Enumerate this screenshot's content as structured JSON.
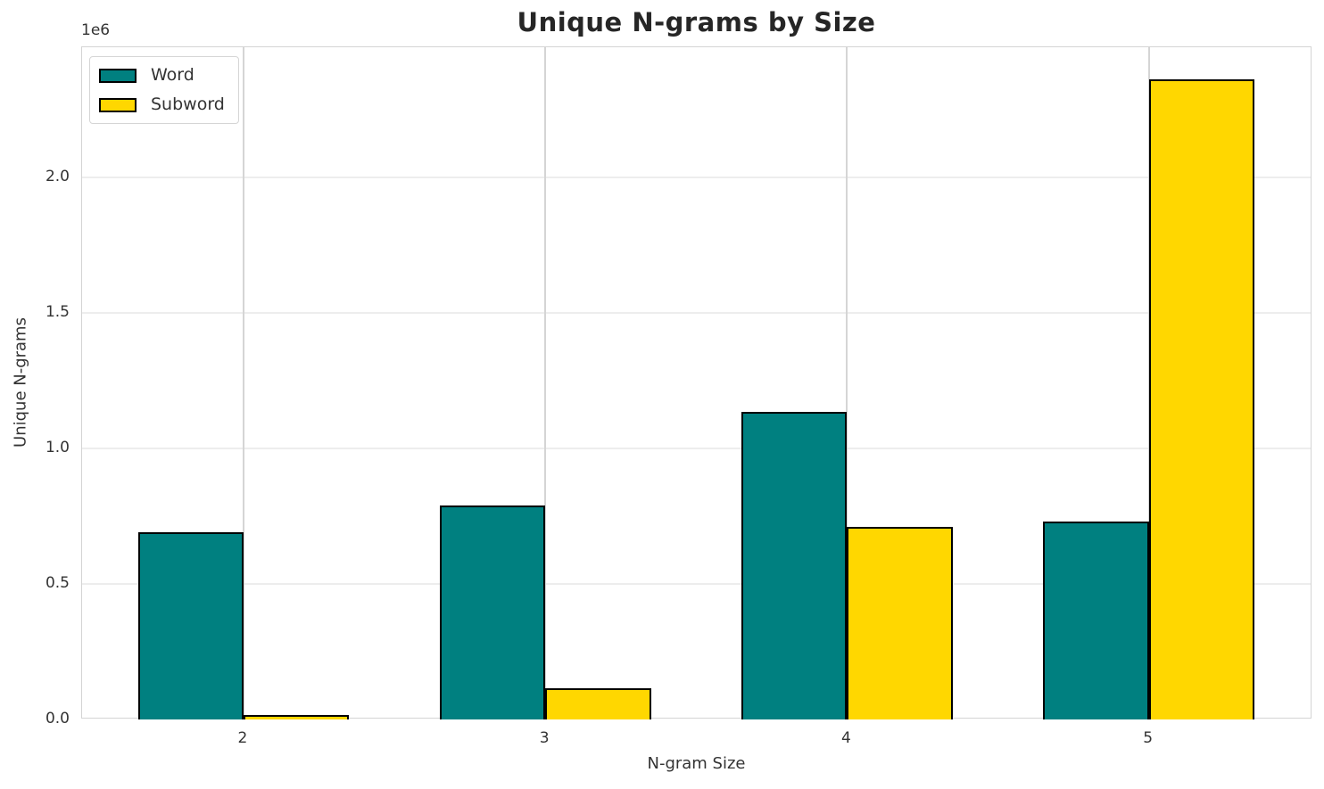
{
  "chart_data": {
    "type": "bar",
    "title": "Unique N-grams by Size",
    "xlabel": "N-gram Size",
    "ylabel": "Unique N-grams",
    "y_offset_text": "1e6",
    "categories": [
      2,
      3,
      4,
      5
    ],
    "xtick_labels": [
      "2",
      "3",
      "4",
      "5"
    ],
    "series": [
      {
        "name": "Word",
        "color": "#008080",
        "values": [
          690000,
          790000,
          1134000,
          729000
        ]
      },
      {
        "name": "Subword",
        "color": "#FFD700",
        "values": [
          15000,
          115000,
          710000,
          2362000
        ]
      }
    ],
    "bar_width": 0.35,
    "bar_edge_color": "#000000",
    "xlim": [
      1.465,
      5.542
    ],
    "ylim": [
      0,
      2480000
    ],
    "yticks": [
      0,
      500000,
      1000000,
      1500000,
      2000000
    ],
    "ytick_labels": [
      "0.0",
      "0.5",
      "1.0",
      "1.5",
      "2.0"
    ],
    "grid": true,
    "legend_position": "upper-left",
    "colors": {
      "grid_horizontal": "#ededed",
      "grid_vertical": "#d5d5d5",
      "spine": "#d4d4d4",
      "text": "#333333",
      "title": "#262626",
      "background": "#ffffff"
    }
  }
}
